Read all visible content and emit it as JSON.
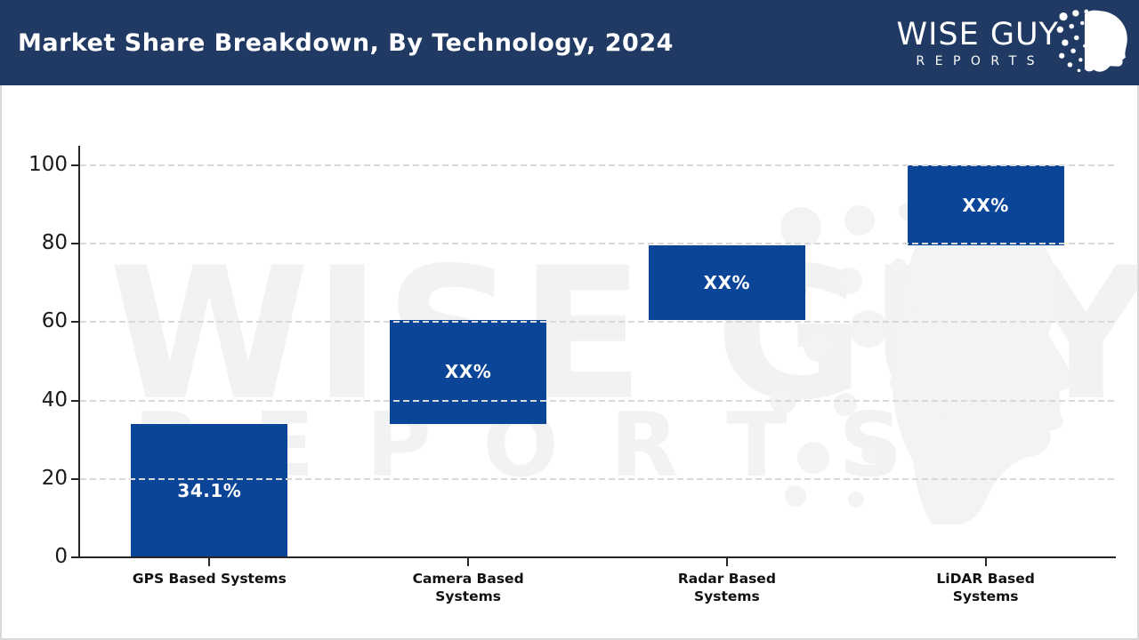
{
  "header": {
    "title": "Market Share Breakdown, By Technology, 2024",
    "logo_line1": "WISE GUY",
    "logo_line2": "REPORTS"
  },
  "watermark": {
    "line1": "WISE GUY",
    "line2": "REPORTS"
  },
  "colors": {
    "header_bg": "#213a64",
    "bar": "#0b4598",
    "bar_label": "#ffffff",
    "grid": "#d9d9d9",
    "axis": "#262626",
    "watermark": "#f1f2f4",
    "label_text": "#111111"
  },
  "chart_data": {
    "type": "bar",
    "subtype": "waterfall-floating-bars",
    "title": "Market Share Breakdown, By Technology, 2024",
    "xlabel": "",
    "ylabel": "",
    "ylim": [
      0,
      100
    ],
    "y_ticks": [
      0,
      20,
      40,
      60,
      80,
      100
    ],
    "grid": "horizontal-dashed-over-bars",
    "legend": "none",
    "categories": [
      "GPS Based Systems",
      "Camera Based Systems",
      "Radar Based Systems",
      "LiDAR Based Systems"
    ],
    "category_label_lines": [
      [
        "GPS Based Systems"
      ],
      [
        "Camera Based",
        "Systems"
      ],
      [
        "Radar Based",
        "Systems"
      ],
      [
        "LiDAR Based",
        "Systems"
      ]
    ],
    "segments": [
      {
        "category": "GPS Based Systems",
        "start": 0,
        "end": 34.1,
        "label": "34.1%"
      },
      {
        "category": "Camera Based Systems",
        "start": 34.1,
        "end": 60.5,
        "label": "XX%"
      },
      {
        "category": "Radar Based Systems",
        "start": 60.5,
        "end": 79.5,
        "label": "XX%"
      },
      {
        "category": "LiDAR Based Systems",
        "start": 79.5,
        "end": 100,
        "label": "XX%"
      }
    ]
  }
}
